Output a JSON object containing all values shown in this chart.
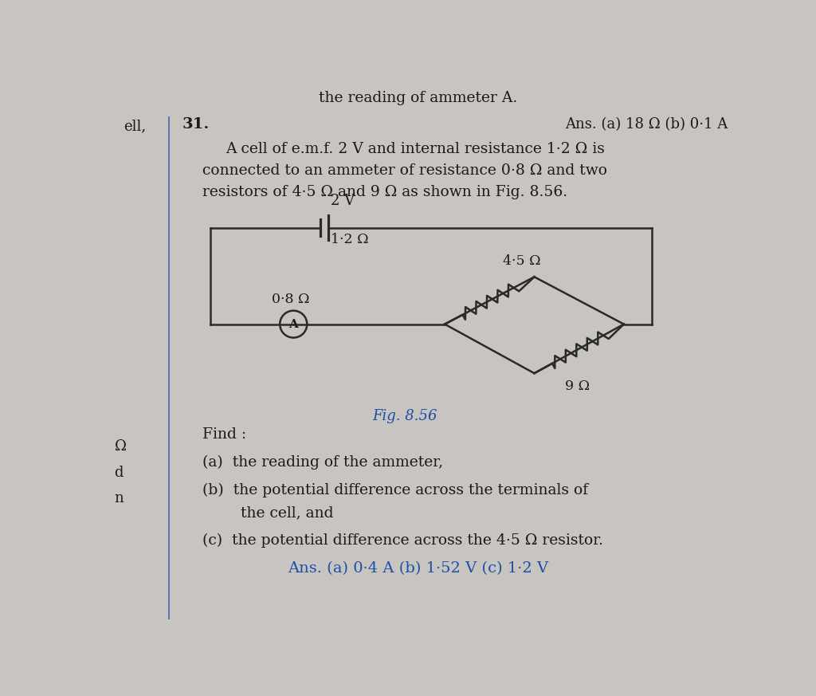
{
  "bg_color": "#c8c4c0",
  "text_color": "#1a1a1a",
  "line_color": "#2a2a2a",
  "blue_color": "#1a4faa",
  "header_text": "the reading of ammeter A.",
  "problem_number": "31.",
  "ans_top": "Ans. (a) 18 Ω (b) 0·1 A",
  "problem_text_line1": "A cell of e.m.f. 2 V and internal resistance 1·2 Ω is",
  "problem_text_line2": "connected to an ammeter of resistance 0·8 Ω and two",
  "problem_text_line3": "resistors of 4·5 Ω and 9 Ω as shown in Fig. 8.56.",
  "circuit_label_2V": "2 V",
  "circuit_label_1_2ohm": "1·2 Ω",
  "circuit_label_0_8ohm": "0·8 Ω",
  "circuit_label_4_5ohm": "4·5 Ω",
  "circuit_label_9ohm": "9 Ω",
  "circuit_label_A": "A",
  "fig_caption": "Fig. 8.56",
  "find_text": "Find :",
  "item_a": "(a)  the reading of the ammeter,",
  "item_b": "(b)  the potential difference across the terminals of",
  "item_b2": "        the cell, and",
  "item_c": "(c)  the potential difference across the 4·5 Ω resistor.",
  "ans_bottom": "Ans. (a) 0·4 A (b) 1·52 V (c) 1·2 V",
  "left_margin_ell": "ell,",
  "left_margin_items": [
    "Ω",
    "d",
    "n"
  ],
  "left_line_color": "#4466aa"
}
